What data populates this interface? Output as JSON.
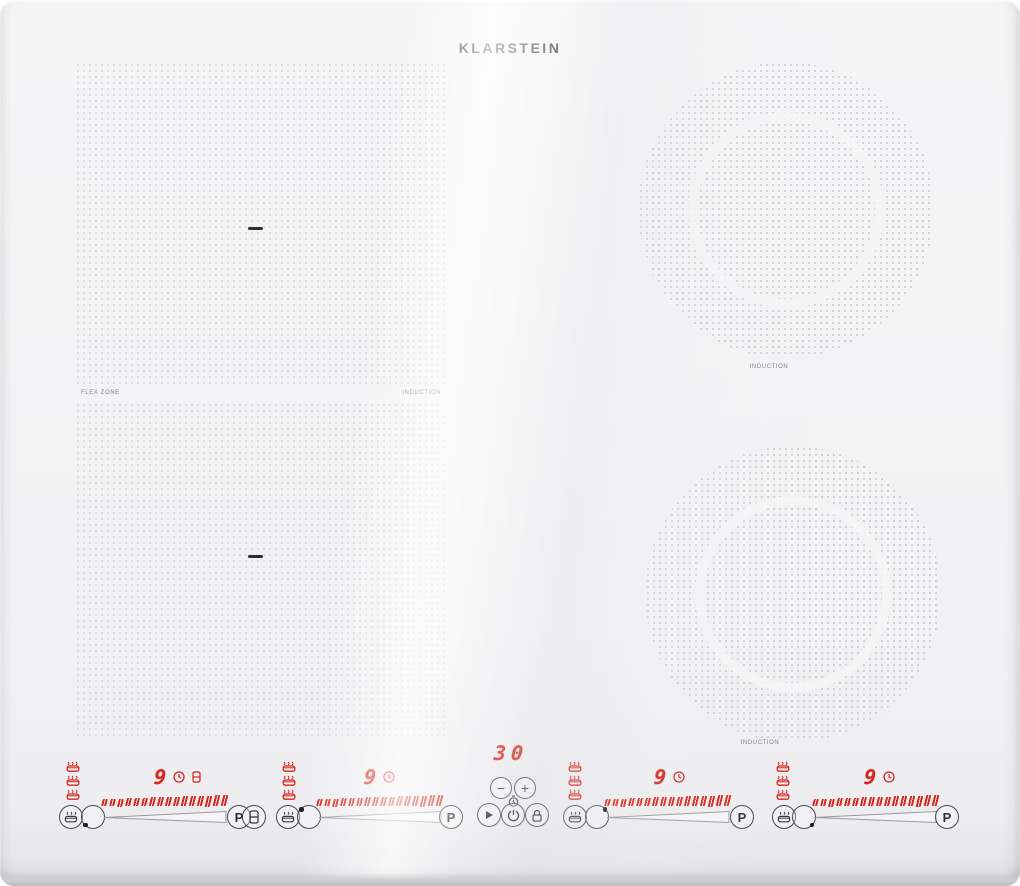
{
  "brand": {
    "logo": "KLARSTEIN"
  },
  "surface": {
    "flex_left_label": "FLEX ZONE",
    "flex_right_label": "INDUCTION",
    "circle_top_label": "INDUCTION",
    "circle_bottom_label": "INDUCTION"
  },
  "timer": {
    "display": "30"
  },
  "center_controls": {
    "minus": "−",
    "plus": "+"
  },
  "zones": [
    {
      "name": "flex-left-rear",
      "level": "9",
      "boost": "P",
      "ticks": 16,
      "has_bridge": true,
      "dot": "bottom-left"
    },
    {
      "name": "flex-left-front",
      "level": "9",
      "boost": "P",
      "ticks": 16,
      "has_bridge": false,
      "dot": "top-left"
    },
    {
      "name": "right-rear",
      "level": "9",
      "boost": "P",
      "ticks": 16,
      "has_bridge": false,
      "dot": "top-right"
    },
    {
      "name": "right-front",
      "level": "9",
      "boost": "P",
      "ticks": 16,
      "has_bridge": false,
      "dot": "bottom-right"
    }
  ],
  "colors": {
    "led_red": "#d6251c",
    "surface": "#f3f3f5",
    "control_dark": "#3a3a3e",
    "dot_gray": "#cfcfd4"
  }
}
